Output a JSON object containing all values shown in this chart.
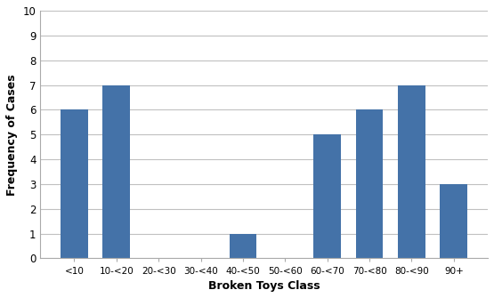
{
  "categories": [
    "<10",
    "10-<20",
    "20-<30",
    "30-<40",
    "40-<50",
    "50-<60",
    "60-<70",
    "70-<80",
    "80-<90",
    "90+"
  ],
  "values": [
    6,
    7,
    0,
    0,
    1,
    0,
    5,
    6,
    7,
    3
  ],
  "bar_color": "#4472a8",
  "xlabel": "Broken Toys Class",
  "ylabel": "Frequency of Cases",
  "ylim": [
    0,
    10
  ],
  "yticks": [
    0,
    1,
    2,
    3,
    4,
    5,
    6,
    7,
    8,
    9,
    10
  ],
  "grid_color": "#c0c0c0",
  "background_color": "#ffffff",
  "xlabel_fontsize": 9,
  "ylabel_fontsize": 9,
  "xtick_fontsize": 7.5,
  "ytick_fontsize": 8.5,
  "bar_width": 0.65
}
